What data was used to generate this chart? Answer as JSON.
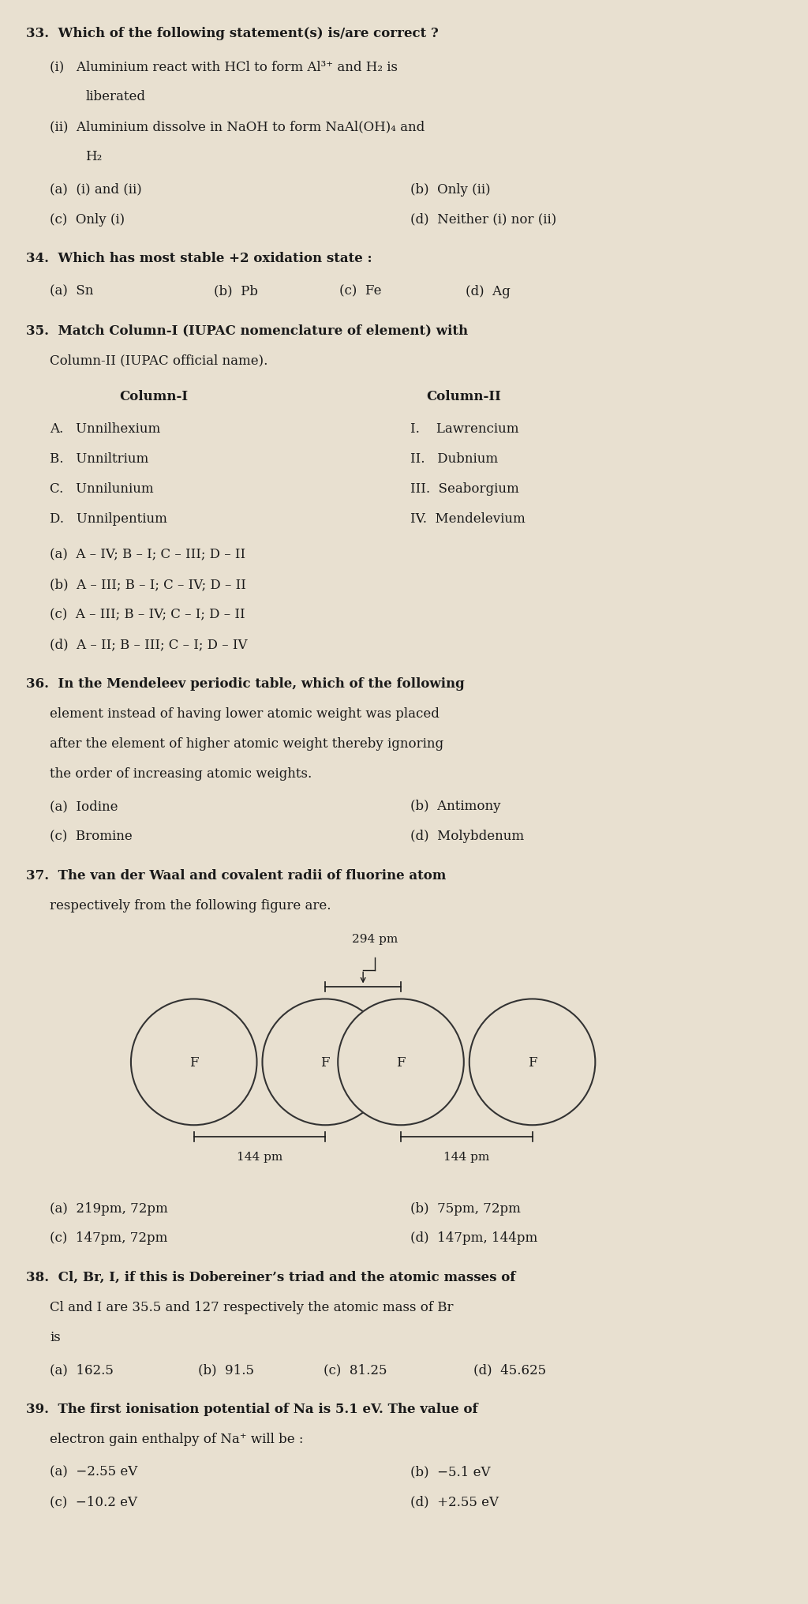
{
  "bg_color": "#e8e0d0",
  "text_color": "#1a1a1a",
  "font_family": "serif",
  "body_fontsize": 12,
  "small_fontsize": 11,
  "q33_num": "33.",
  "q33_text": "Which of the following statement(s) is/are correct ?",
  "q33_i": "(i)   Aluminium react with HCl to form Al³⁺ and H₂ is",
  "q33_i2": "liberated",
  "q33_ii": "(ii)  Aluminium dissolve in NaOH to form NaAl(OH)₄ and",
  "q33_ii2": "H₂",
  "q33_a": "(a)  (i) and (ii)",
  "q33_b": "(b)  Only (ii)",
  "q33_c": "(c)  Only (i)",
  "q33_d": "(d)  Neither (i) nor (ii)",
  "q34_num": "34.",
  "q34_text": "Which has most stable +2 oxidation state :",
  "q34_a": "(a)  Sn",
  "q34_b": "(b)  Pb",
  "q34_c": "(c)  Fe",
  "q34_d": "(d)  Ag",
  "q35_num": "35.",
  "q35_text1": "Match Column-I (IUPAC nomenclature of element) with",
  "q35_text2": "Column-II (IUPAC official name).",
  "col1_header": "Column-I",
  "col2_header": "Column-II",
  "col1": [
    "A.   Unnilhexium",
    "B.   Unniltrium",
    "C.   Unnilunium",
    "D.   Unnilpentium"
  ],
  "col2": [
    "I.    Lawrencium",
    "II.   Dubnium",
    "III.  Seaborgium",
    "IV.  Mendelevium"
  ],
  "q35_a": "(a)  A – IV; B – I; C – III; D – II",
  "q35_b": "(b)  A – III; B – I; C – IV; D – II",
  "q35_c": "(c)  A – III; B – IV; C – I; D – II",
  "q35_d": "(d)  A – II; B – III; C – I; D – IV",
  "q36_num": "36.",
  "q36_text1": "In the Mendeleev periodic table, which of the following",
  "q36_text2": "element instead of having lower atomic weight was placed",
  "q36_text3": "after the element of higher atomic weight thereby ignoring",
  "q36_text4": "the order of increasing atomic weights.",
  "q36_a": "(a)  Iodine",
  "q36_b": "(b)  Antimony",
  "q36_c": "(c)  Bromine",
  "q36_d": "(d)  Molybdenum",
  "q37_num": "37.",
  "q37_text1": "The van der Waal and covalent radii of fluorine atom",
  "q37_text2": "respectively from the following figure are.",
  "fig_label": "294 pm",
  "fig_meas1": "144 pm",
  "fig_meas2": "144 pm",
  "q37_a": "(a)  219pm, 72pm",
  "q37_b": "(b)  75pm, 72pm",
  "q37_c": "(c)  147pm, 72pm",
  "q37_d": "(d)  147pm, 144pm",
  "q38_num": "38.",
  "q38_text1": "Cl, Br, I, if this is Dobereiner’s triad and the atomic masses of",
  "q38_text2": "Cl and I are 35.5 and 127 respectively the atomic mass of Br",
  "q38_text3": "is",
  "q38_a": "(a)  162.5",
  "q38_b": "(b)  91.5",
  "q38_c": "(c)  81.25",
  "q38_d": "(d)  45.625",
  "q39_num": "39.",
  "q39_text1": "The first ionisation potential of Na is 5.1 eV. The value of",
  "q39_text2": "electron gain enthalpy of Na⁺ will be :",
  "q39_a": "(a)  −2.55 eV",
  "q39_b": "(b)  −5.1 eV",
  "q39_c": "(c)  −10.2 eV",
  "q39_d": "(d)  +2.55 eV",
  "edge_color": "#333333",
  "circle_r": 0.8,
  "lh": 0.38
}
